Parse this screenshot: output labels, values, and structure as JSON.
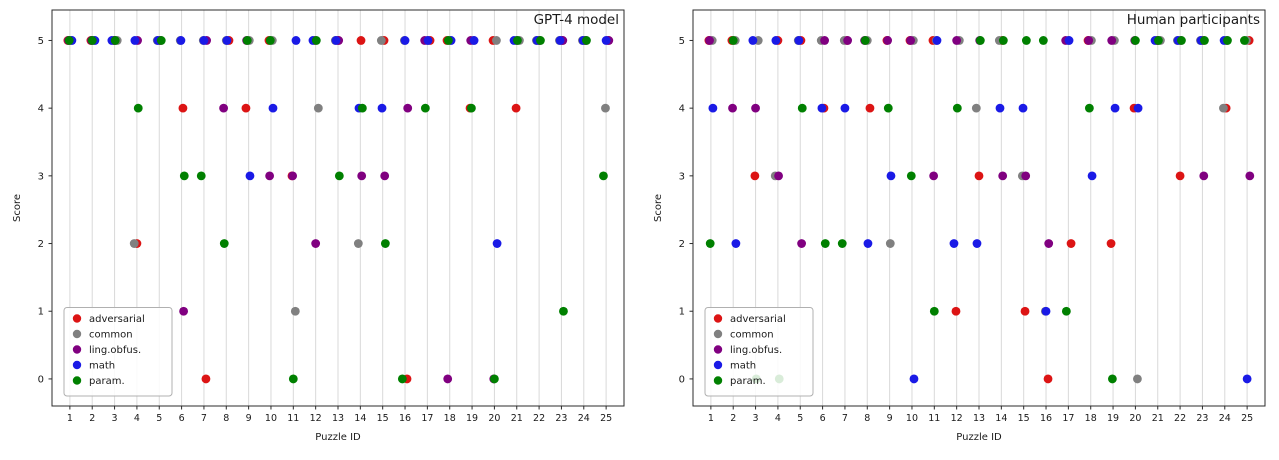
{
  "figure": {
    "background": "#ffffff",
    "description": "Two side-by-side scatter plots of puzzle scores by category"
  },
  "palette": {
    "adversarial": "#dc1414",
    "common": "#808080",
    "ling.obfus.": "#800080",
    "math": "#1a1ae6",
    "param.": "#008000",
    "grid": "#d9d9d9",
    "spine": "#2b2b2b",
    "legend_border": "#b0b0b0"
  },
  "chart_data": [
    {
      "type": "scatter",
      "title": "GPT-4 model",
      "xlabel": "Puzzle ID",
      "ylabel": "Score",
      "xlim": [
        0.2,
        25.8
      ],
      "ylim": [
        -0.4,
        5.45
      ],
      "xticks": [
        1,
        2,
        3,
        4,
        5,
        6,
        7,
        8,
        9,
        10,
        11,
        12,
        13,
        14,
        15,
        16,
        17,
        18,
        19,
        20,
        21,
        22,
        23,
        24,
        25
      ],
      "yticks": [
        0,
        1,
        2,
        3,
        4,
        5
      ],
      "grid": {
        "vertical": true,
        "horizontal": false
      },
      "legend": {
        "position": "lower-left",
        "entries": [
          "adversarial",
          "common",
          "ling.obfus.",
          "math",
          "param."
        ]
      },
      "series": [
        {
          "name": "adversarial",
          "color": "#dc1414",
          "scores": [
            5,
            5,
            5,
            2,
            5,
            4,
            0,
            5,
            4,
            5,
            3,
            5,
            5,
            5,
            5,
            0,
            5,
            5,
            4,
            5,
            4,
            5,
            5,
            5,
            5
          ]
        },
        {
          "name": "common",
          "color": "#808080",
          "scores": [
            5,
            5,
            5,
            2,
            5,
            5,
            5,
            5,
            5,
            5,
            1,
            4,
            5,
            2,
            5,
            5,
            5,
            5,
            5,
            5,
            5,
            5,
            5,
            5,
            4
          ]
        },
        {
          "name": "ling.obfus.",
          "color": "#800080",
          "scores": [
            5,
            5,
            5,
            5,
            5,
            1,
            5,
            4,
            5,
            3,
            3,
            2,
            5,
            3,
            3,
            4,
            5,
            0,
            5,
            0,
            5,
            5,
            5,
            5,
            5
          ]
        },
        {
          "name": "math",
          "color": "#1a1ae6",
          "scores": [
            5,
            5,
            5,
            5,
            5,
            5,
            5,
            5,
            3,
            4,
            5,
            5,
            5,
            4,
            4,
            5,
            5,
            5,
            5,
            2,
            5,
            5,
            5,
            5,
            5
          ]
        },
        {
          "name": "param.",
          "color": "#008000",
          "scores": [
            5,
            5,
            5,
            4,
            5,
            3,
            3,
            2,
            5,
            5,
            0,
            5,
            3,
            4,
            2,
            0,
            4,
            5,
            4,
            0,
            5,
            5,
            1,
            5,
            3
          ]
        }
      ]
    },
    {
      "type": "scatter",
      "title": "Human participants",
      "xlabel": "Puzzle ID",
      "ylabel": "Score",
      "xlim": [
        0.2,
        25.8
      ],
      "ylim": [
        -0.4,
        5.45
      ],
      "xticks": [
        1,
        2,
        3,
        4,
        5,
        6,
        7,
        8,
        9,
        10,
        11,
        12,
        13,
        14,
        15,
        16,
        17,
        18,
        19,
        20,
        21,
        22,
        23,
        24,
        25
      ],
      "yticks": [
        0,
        1,
        2,
        3,
        4,
        5
      ],
      "grid": {
        "vertical": true,
        "horizontal": false
      },
      "legend": {
        "position": "lower-left",
        "entries": [
          "adversarial",
          "common",
          "ling.obfus.",
          "math",
          "param."
        ]
      },
      "series": [
        {
          "name": "adversarial",
          "color": "#dc1414",
          "scores": [
            5,
            5,
            3,
            5,
            5,
            4,
            5,
            4,
            5,
            5,
            5,
            1,
            3,
            5,
            1,
            0,
            2,
            5,
            2,
            4,
            5,
            3,
            5,
            4,
            5
          ]
        },
        {
          "name": "common",
          "color": "#808080",
          "scores": [
            5,
            5,
            5,
            3,
            5,
            5,
            5,
            5,
            2,
            5,
            5,
            5,
            4,
            5,
            3,
            1,
            5,
            5,
            5,
            0,
            5,
            5,
            5,
            4,
            5
          ]
        },
        {
          "name": "ling.obfus.",
          "color": "#800080",
          "scores": [
            5,
            4,
            4,
            3,
            2,
            5,
            5,
            5,
            5,
            5,
            3,
            5,
            5,
            3,
            3,
            2,
            5,
            5,
            5,
            5,
            5,
            5,
            3,
            5,
            3
          ]
        },
        {
          "name": "math",
          "color": "#1a1ae6",
          "scores": [
            4,
            2,
            5,
            5,
            5,
            4,
            4,
            2,
            3,
            0,
            5,
            2,
            2,
            4,
            4,
            1,
            5,
            3,
            4,
            4,
            5,
            5,
            5,
            5,
            0
          ]
        },
        {
          "name": "param.",
          "color": "#008000",
          "scores": [
            2,
            5,
            0,
            0,
            4,
            2,
            2,
            5,
            4,
            3,
            1,
            4,
            5,
            5,
            5,
            5,
            1,
            4,
            0,
            5,
            5,
            5,
            5,
            5,
            5
          ]
        }
      ]
    }
  ]
}
